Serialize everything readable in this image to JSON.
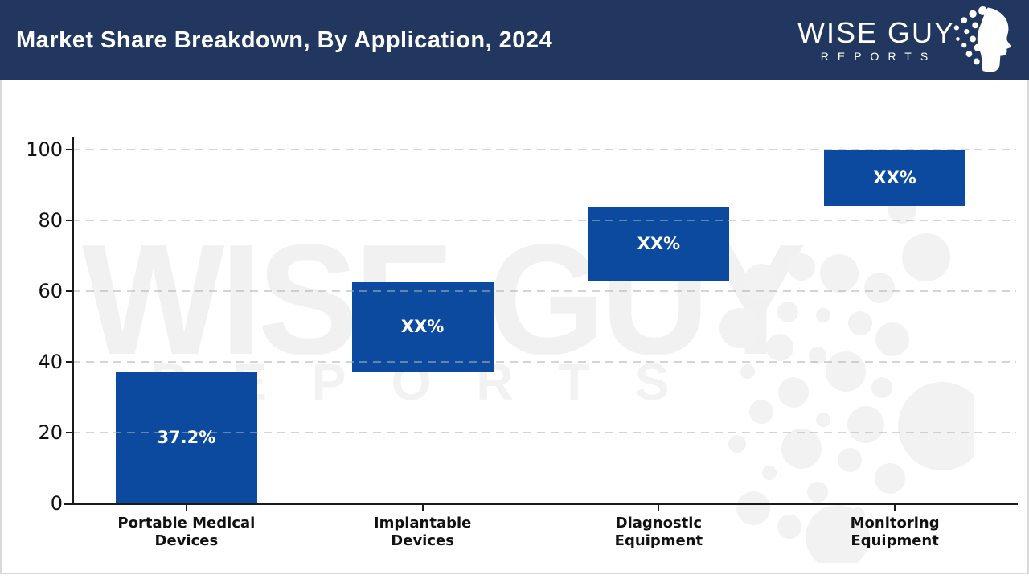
{
  "header": {
    "title": "Market Share Breakdown, By Application, 2024",
    "logo": {
      "name": "WISE GUY",
      "tagline": "REPORTS"
    }
  },
  "watermark": {
    "line1": "WISE GUY",
    "line2": "REPORTS"
  },
  "chart_data": {
    "type": "bar",
    "subtype": "waterfall",
    "title": "Market Share Breakdown, By Application, 2024",
    "categories": [
      {
        "lines": [
          "Portable Medical",
          "Devices"
        ]
      },
      {
        "lines": [
          "Implantable",
          "Devices"
        ]
      },
      {
        "lines": [
          "Diagnostic",
          "Equipment"
        ]
      },
      {
        "lines": [
          "Monitoring",
          "Equipment"
        ]
      }
    ],
    "segments": [
      {
        "start": 0,
        "end": 37.2,
        "label": "37.2%"
      },
      {
        "start": 37.2,
        "end": 62.6,
        "label": "XX%"
      },
      {
        "start": 62.7,
        "end": 83.9,
        "label": "XX%"
      },
      {
        "start": 84.0,
        "end": 100.0,
        "label": "XX%"
      }
    ],
    "ylim": [
      0,
      100
    ],
    "yticks": [
      0,
      20,
      40,
      60,
      80,
      100
    ],
    "grid": "horizontal-dashed",
    "legend": "none",
    "colors": {
      "bar": "#0b4a9f",
      "bar_label": "#ffffff",
      "axis": "#1a1a1a",
      "grid": "#b2b2b2",
      "header_bg": "#21375f",
      "watermark": "#f1f1f1"
    }
  }
}
